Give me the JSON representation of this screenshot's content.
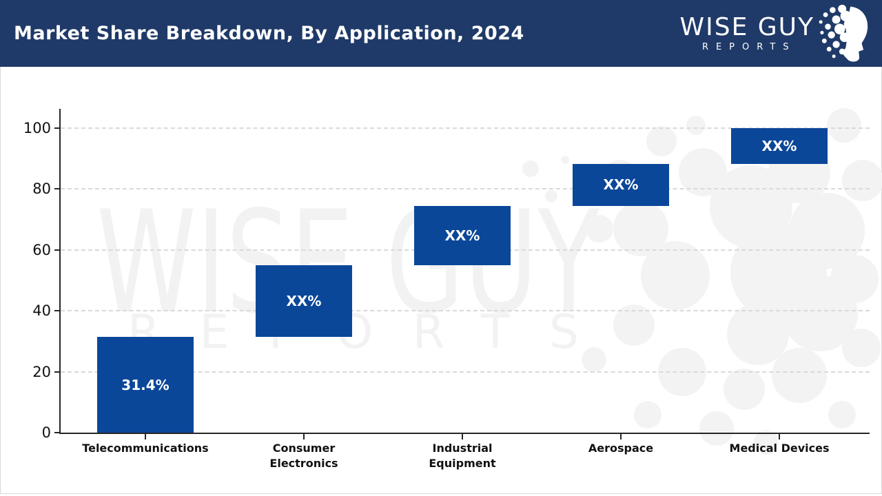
{
  "header": {
    "title": "Market Share Breakdown, By Application, 2024",
    "bg_color": "#1f3a68",
    "logo": {
      "line1": "WISE GUY",
      "line2": "REPORTS"
    }
  },
  "watermark": {
    "line1": "WISE GUY",
    "line2": "REPORTS"
  },
  "chart_data": {
    "type": "bar",
    "subtype": "waterfall",
    "title": "Market Share Breakdown, By Application, 2024",
    "categories": [
      "Telecommunications",
      "Consumer\nElectronics",
      "Industrial\nEquipment",
      "Aerospace",
      "Medical Devices"
    ],
    "segments": [
      {
        "category": "Telecommunications",
        "start": 0,
        "end": 31.4,
        "label": "31.4%"
      },
      {
        "category": "Consumer Electronics",
        "start": 31.4,
        "end": 55.0,
        "label": "XX%"
      },
      {
        "category": "Industrial Equipment",
        "start": 55.0,
        "end": 74.5,
        "label": "XX%"
      },
      {
        "category": "Aerospace",
        "start": 74.5,
        "end": 88.2,
        "label": "XX%"
      },
      {
        "category": "Medical Devices",
        "start": 88.2,
        "end": 100.0,
        "label": "XX%"
      }
    ],
    "increments_estimated": [
      31.4,
      23.6,
      19.5,
      13.7,
      11.8
    ],
    "total": 100,
    "ylim": [
      0,
      106
    ],
    "yticks": [
      0,
      20,
      40,
      60,
      80,
      100
    ],
    "xlabel": "",
    "ylabel": "",
    "grid": "horizontal-dashed",
    "legend": "none",
    "bar_color": "#0b4799",
    "bar_label_color": "#ffffff",
    "axis_color": "#262626"
  }
}
